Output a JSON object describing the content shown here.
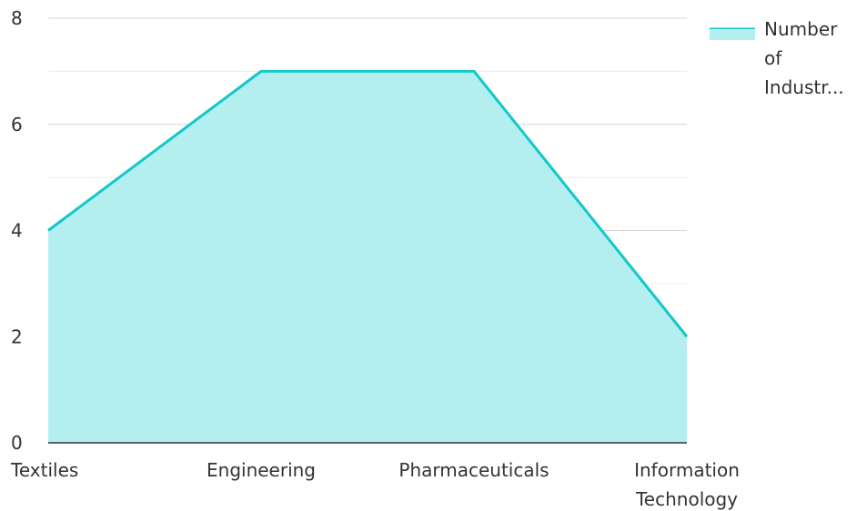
{
  "chart_data": {
    "type": "area",
    "categories": [
      "Textiles",
      "Engineering",
      "Pharmaceuticals",
      "Information Technology"
    ],
    "series": [
      {
        "name": "Number of Industr...",
        "values": [
          4,
          7,
          7,
          2
        ]
      }
    ],
    "ylim": [
      0,
      8
    ],
    "y_ticks": [
      "0",
      "2",
      "4",
      "6",
      "8"
    ],
    "grid": true,
    "legend": {
      "position": "top-right",
      "label_lines": [
        "Number",
        "of",
        "Industr..."
      ]
    },
    "colors": {
      "line": "#14c8c8",
      "fill": "#b3efee",
      "grid": "#dddddd",
      "axis": "#333333"
    }
  }
}
